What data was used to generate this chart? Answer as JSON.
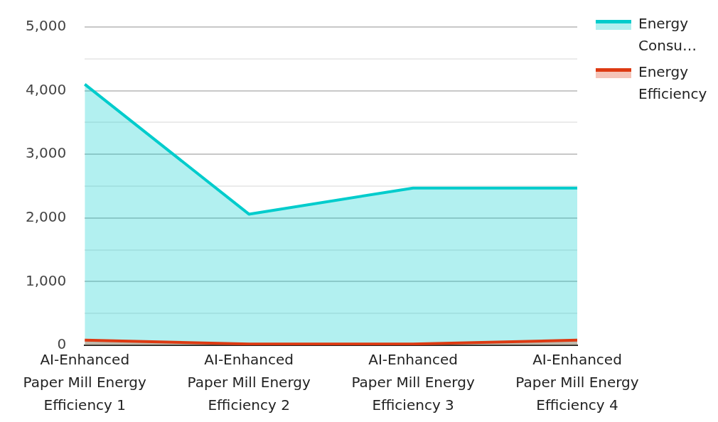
{
  "chart_data": {
    "type": "area",
    "categories": [
      "AI-Enhanced Paper Mill Energy Efficiency 1",
      "AI-Enhanced Paper Mill Energy Efficiency 2",
      "AI-Enhanced Paper Mill Energy Efficiency 3",
      "AI-Enhanced Paper Mill Energy Efficiency 4"
    ],
    "series": [
      {
        "name": "Energy Consu…",
        "color": "#00cccc",
        "values": [
          4100,
          2060,
          2470,
          2470
        ]
      },
      {
        "name": "Energy Efficiency",
        "color": "#dd3a12",
        "values": [
          80,
          20,
          20,
          80
        ]
      }
    ],
    "ylim": [
      0,
      5000
    ],
    "yticks": [
      0,
      {
        "value": 500,
        "label": null
      },
      {
        "value": 1000,
        "label": "1,000"
      },
      {
        "value": 1500,
        "label": null
      },
      {
        "value": 2000,
        "label": "2,000"
      },
      {
        "value": 2500,
        "label": null
      },
      {
        "value": 3000,
        "label": "3,000"
      },
      {
        "value": 3500,
        "label": null
      },
      {
        "value": 4000,
        "label": "4,000"
      },
      {
        "value": 4500,
        "label": null
      },
      {
        "value": 5000,
        "label": "5,000"
      }
    ],
    "grid": "y",
    "legend": "top right",
    "marker": "none",
    "line_style": "solid"
  }
}
